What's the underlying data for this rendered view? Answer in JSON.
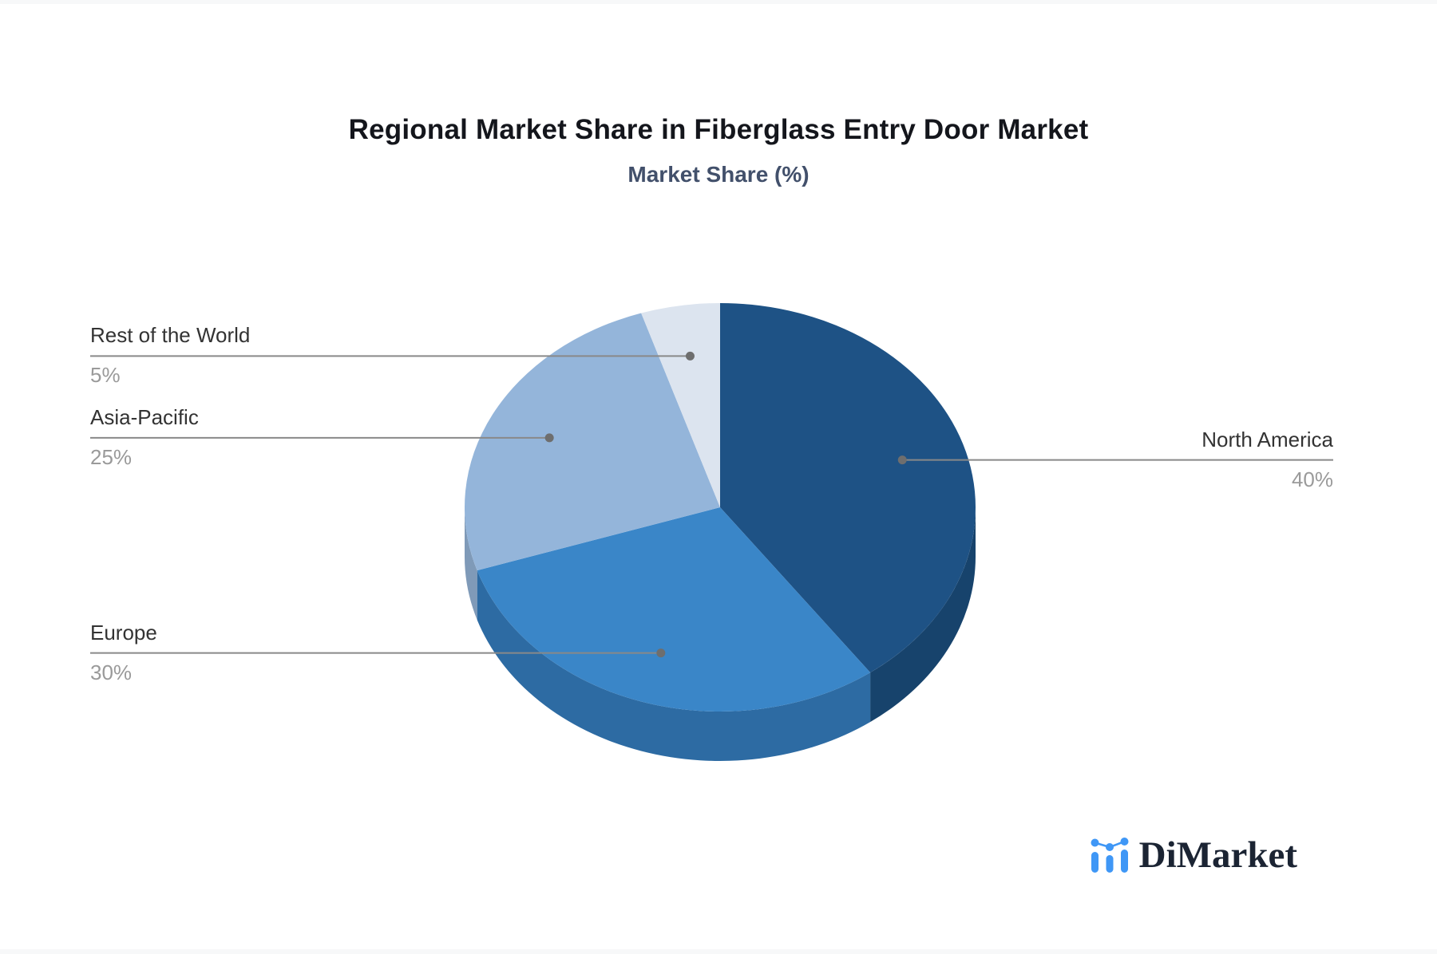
{
  "chart_data": {
    "type": "pie",
    "style": "pie3d",
    "title": "Regional Market Share in Fiberglass Entry Door Market",
    "subtitle": "Market Share (%)",
    "unit": "%",
    "start_angle_deg": -90,
    "clockwise": true,
    "legend_position": "callout-labels",
    "slices": [
      {
        "label": "North America",
        "value": 40,
        "color": "#1e5285",
        "side_color": "#17436c",
        "callout_side": "right"
      },
      {
        "label": "Europe",
        "value": 30,
        "color": "#3a86c8",
        "side_color": "#2d6ba3",
        "callout_side": "left"
      },
      {
        "label": "Asia-Pacific",
        "value": 25,
        "color": "#94b5da",
        "side_color": "#7f9ab8",
        "callout_side": "left"
      },
      {
        "label": "Rest of the World",
        "value": 5,
        "color": "#dce4ef",
        "side_color": "#c2cddd",
        "callout_side": "left"
      }
    ]
  },
  "branding": {
    "logo_text": "DiMarket",
    "logo_icon": "bar-chart-logo-icon",
    "logo_color": "#3f97f6",
    "logo_text_color": "#1b2433"
  },
  "style_colors": {
    "background": "#f7f8f9",
    "card_background": "#ffffff",
    "leader_line": "#898989",
    "leader_dot": "#6e6e6e",
    "label_text": "#333333",
    "value_text": "#9a9a9a",
    "title_text": "#14161c",
    "subtitle_text": "#42506b"
  }
}
